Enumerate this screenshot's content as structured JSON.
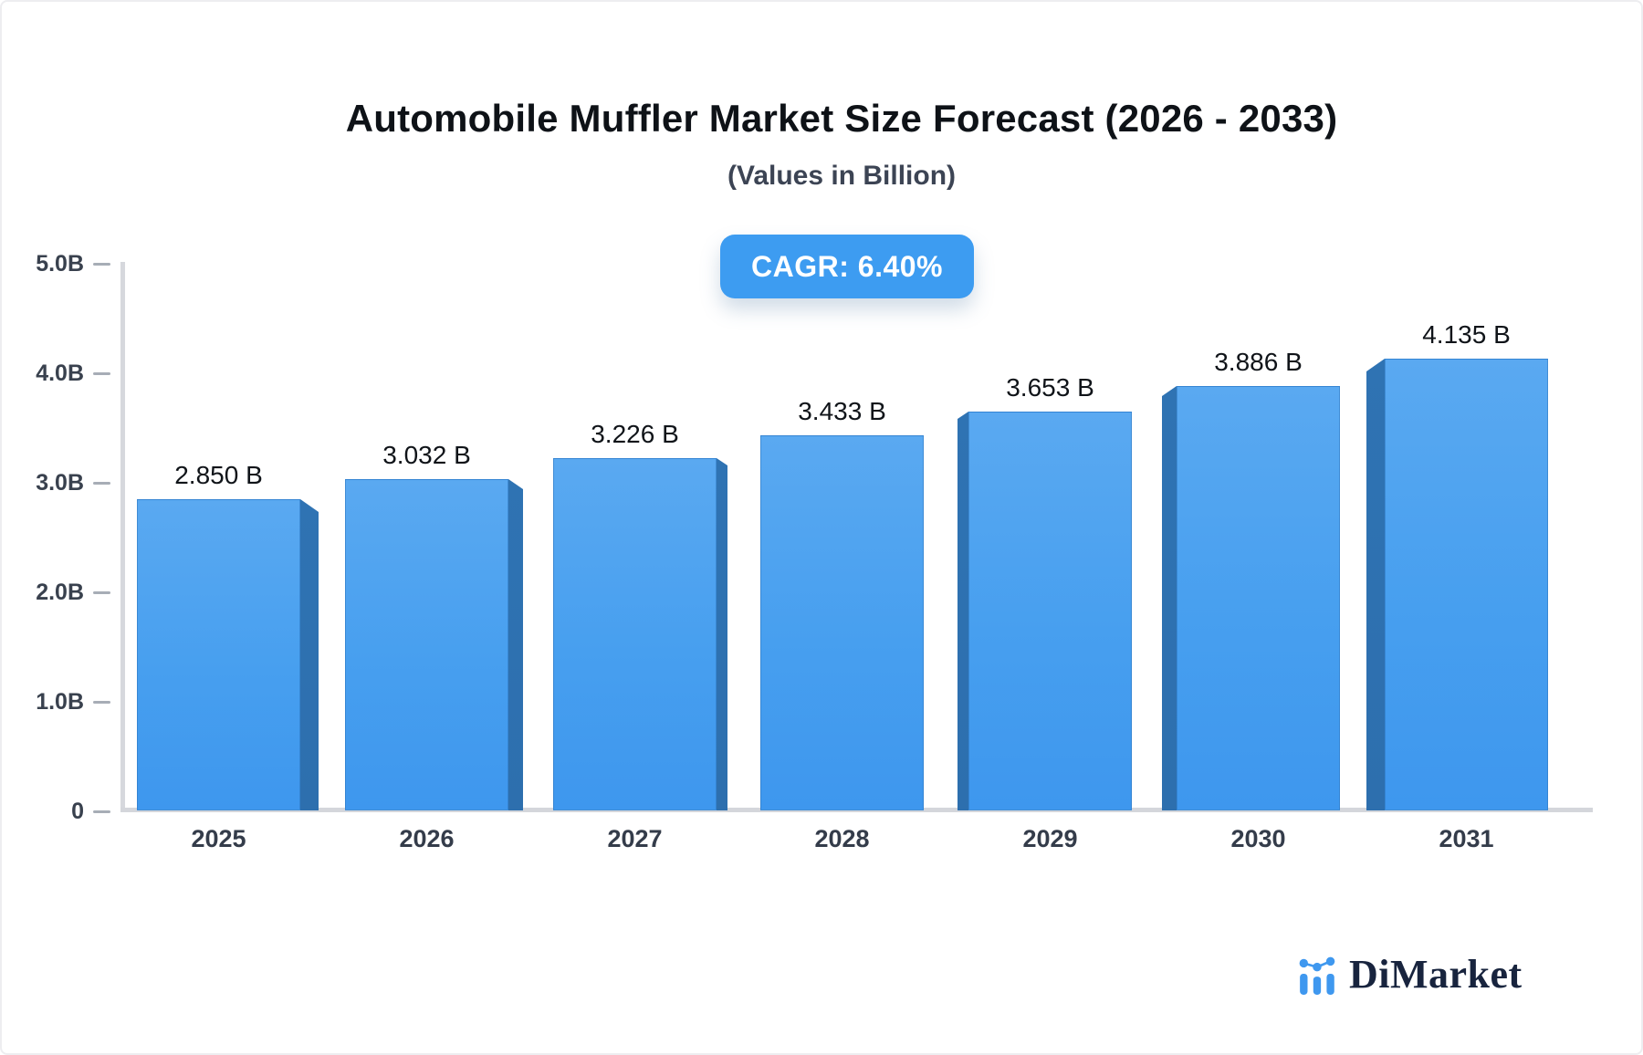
{
  "header": {
    "title": "Automobile Muffler Market Size Forecast (2026 - 2033)",
    "subtitle": "(Values in Billion)",
    "cagr_label": "CAGR: 6.40%"
  },
  "chart_data": {
    "type": "bar",
    "title": "Automobile Muffler Market Size Forecast (2026 - 2033)",
    "subtitle": "(Values in Billion)",
    "categories": [
      "2025",
      "2026",
      "2027",
      "2028",
      "2029",
      "2030",
      "2031"
    ],
    "values": [
      2.85,
      3.032,
      3.226,
      3.433,
      3.653,
      3.886,
      4.135
    ],
    "bar_labels": [
      "2.850 B",
      "3.032 B",
      "3.226 B",
      "3.433 B",
      "3.653 B",
      "3.886 B",
      "4.135 B"
    ],
    "unit": "Billion",
    "cagr": "6.40%",
    "ylim": [
      0,
      5
    ],
    "ytick_values": [
      5.0,
      4.0,
      3.0,
      2.0,
      1.0,
      0
    ],
    "ytick_labels": [
      "5.0B",
      "4.0B",
      "3.0B",
      "2.0B",
      "1.0B",
      "0"
    ],
    "xlabel": "",
    "ylabel": "",
    "grid": false,
    "legend": "none",
    "bar_color_top": "#5aa9f1",
    "bar_color_bottom": "#3e97ee",
    "bar_side_color": "#2f73b3",
    "style": "3d-perspective-bars"
  },
  "footer": {
    "logo_text": "DiMarket",
    "logo_icon": "mini-bar-line-chart-icon",
    "logo_color": "#3f98ef",
    "logo_text_color": "#18243e"
  },
  "colors": {
    "accent": "#3d9cf1",
    "axis_line": "#d5d7dc",
    "tick": "#a7adb6",
    "title_text": "#0e1217",
    "subtitle_text": "#3c4454",
    "axis_label_text": "#39414e",
    "background": "#ffffff"
  }
}
